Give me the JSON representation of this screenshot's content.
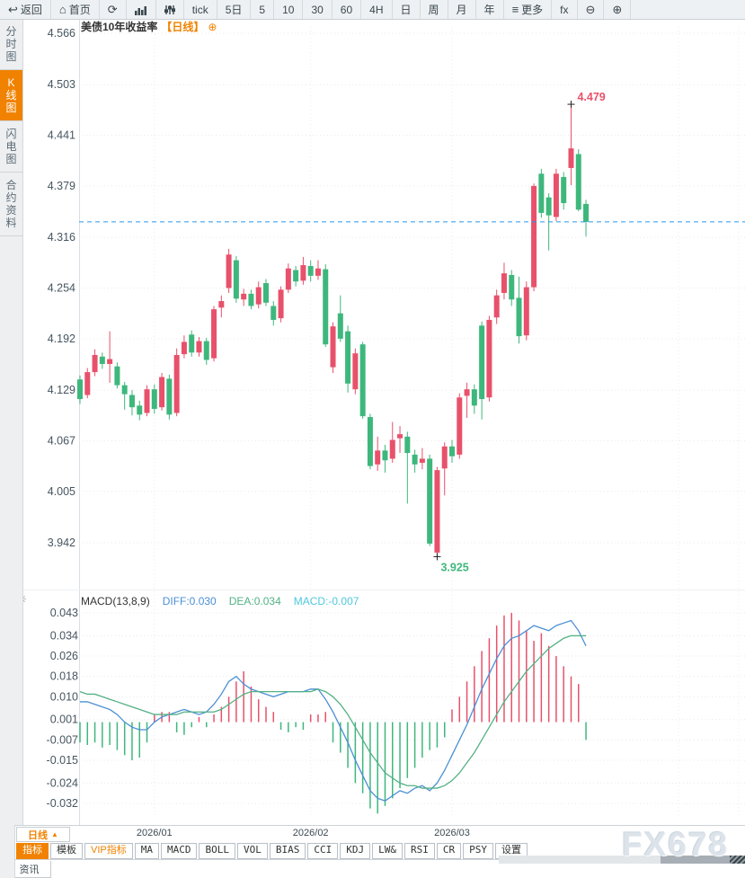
{
  "top_toolbar": {
    "buttons": [
      {
        "id": "back",
        "label": "返回",
        "icon": "back-arrow"
      },
      {
        "id": "home",
        "label": "首页",
        "icon": "home"
      },
      {
        "id": "refresh",
        "label": "",
        "icon": "refresh"
      },
      {
        "id": "chart-type",
        "label": "",
        "icon": "bar-chart"
      },
      {
        "id": "indicator-settings",
        "label": "",
        "icon": "sliders"
      },
      {
        "id": "tick",
        "label": "tick"
      },
      {
        "id": "five-day",
        "label": "5日"
      },
      {
        "id": "min5",
        "label": "5"
      },
      {
        "id": "min10",
        "label": "10"
      },
      {
        "id": "min30",
        "label": "30"
      },
      {
        "id": "min60",
        "label": "60"
      },
      {
        "id": "hour4",
        "label": "4H"
      },
      {
        "id": "daily",
        "label": "日"
      },
      {
        "id": "weekly",
        "label": "周"
      },
      {
        "id": "monthly",
        "label": "月"
      },
      {
        "id": "yearly",
        "label": "年"
      },
      {
        "id": "more",
        "label": "更多",
        "icon": "menu"
      },
      {
        "id": "formula",
        "label": "fx"
      },
      {
        "id": "zoom-out",
        "label": "",
        "icon": "zoom-out"
      },
      {
        "id": "zoom-in",
        "label": "",
        "icon": "zoom-in"
      }
    ]
  },
  "sidebar": {
    "items": [
      {
        "id": "time-chart",
        "label": "分时图",
        "active": false
      },
      {
        "id": "kline-chart",
        "label": "K线图",
        "active": true
      },
      {
        "id": "lightning-chart",
        "label": "闪电图",
        "active": false
      },
      {
        "id": "contract-info",
        "label": "合约资料",
        "active": false
      }
    ]
  },
  "chart_header": {
    "title": "美债10年收益率",
    "period_tag": "【日线】"
  },
  "chart_data": {
    "type": "candlestick",
    "title": "美债10年收益率",
    "period": "日线",
    "y_labels": [
      "4.566",
      "4.503",
      "4.441",
      "4.379",
      "4.316",
      "4.254",
      "4.192",
      "4.129",
      "4.067",
      "4.005",
      "3.942"
    ],
    "x_tick_labels": [
      "2026/01",
      "2026/02",
      "2026/03"
    ],
    "x_tick_indices": [
      10,
      31,
      50
    ],
    "last_close": 4.335,
    "annotations": {
      "high": {
        "index": 66,
        "label": "4.479",
        "value": 4.479
      },
      "low": {
        "index": 48,
        "label": "3.925",
        "value": 3.925
      }
    },
    "candles": [
      [
        4.142,
        4.147,
        4.112,
        4.118
      ],
      [
        4.123,
        4.156,
        4.119,
        4.151
      ],
      [
        4.151,
        4.179,
        4.146,
        4.172
      ],
      [
        4.17,
        4.175,
        4.155,
        4.161
      ],
      [
        4.161,
        4.201,
        4.138,
        4.167
      ],
      [
        4.158,
        4.163,
        4.131,
        4.135
      ],
      [
        4.135,
        4.139,
        4.105,
        4.124
      ],
      [
        4.123,
        4.129,
        4.098,
        4.108
      ],
      [
        4.11,
        4.116,
        4.092,
        4.099
      ],
      [
        4.101,
        4.135,
        4.097,
        4.13
      ],
      [
        4.13,
        4.136,
        4.1,
        4.106
      ],
      [
        4.108,
        4.15,
        4.104,
        4.145
      ],
      [
        4.143,
        4.148,
        4.093,
        4.099
      ],
      [
        4.101,
        4.18,
        4.097,
        4.172
      ],
      [
        4.173,
        4.196,
        4.168,
        4.188
      ],
      [
        4.197,
        4.202,
        4.17,
        4.175
      ],
      [
        4.175,
        4.194,
        4.17,
        4.189
      ],
      [
        4.189,
        4.193,
        4.16,
        4.166
      ],
      [
        4.168,
        4.232,
        4.164,
        4.228
      ],
      [
        4.23,
        4.245,
        4.218,
        4.238
      ],
      [
        4.254,
        4.302,
        4.248,
        4.295
      ],
      [
        4.288,
        4.293,
        4.236,
        4.241
      ],
      [
        4.24,
        4.253,
        4.232,
        4.247
      ],
      [
        4.247,
        4.252,
        4.228,
        4.232
      ],
      [
        4.234,
        4.262,
        4.229,
        4.255
      ],
      [
        4.26,
        4.265,
        4.232,
        4.236
      ],
      [
        4.232,
        4.238,
        4.208,
        4.215
      ],
      [
        4.217,
        4.256,
        4.212,
        4.252
      ],
      [
        4.252,
        4.284,
        4.248,
        4.278
      ],
      [
        4.276,
        4.281,
        4.256,
        4.262
      ],
      [
        4.263,
        4.292,
        4.258,
        4.282
      ],
      [
        4.281,
        4.288,
        4.262,
        4.269
      ],
      [
        4.269,
        4.288,
        4.264,
        4.278
      ],
      [
        4.277,
        4.283,
        4.182,
        4.185
      ],
      [
        4.157,
        4.212,
        4.15,
        4.207
      ],
      [
        4.223,
        4.245,
        4.188,
        4.192
      ],
      [
        4.201,
        4.208,
        4.126,
        4.137
      ],
      [
        4.13,
        4.18,
        4.124,
        4.174
      ],
      [
        4.185,
        4.188,
        4.094,
        4.097
      ],
      [
        4.096,
        4.1,
        4.032,
        4.036
      ],
      [
        4.038,
        4.072,
        4.03,
        4.055
      ],
      [
        4.055,
        4.062,
        4.028,
        4.043
      ],
      [
        4.045,
        4.09,
        4.04,
        4.068
      ],
      [
        4.07,
        4.085,
        4.052,
        4.075
      ],
      [
        4.072,
        4.078,
        3.99,
        4.052
      ],
      [
        4.05,
        4.056,
        4.028,
        4.038
      ],
      [
        4.04,
        4.058,
        4.032,
        4.045
      ],
      [
        4.045,
        4.05,
        3.938,
        3.941
      ],
      [
        3.93,
        4.035,
        3.925,
        4.031
      ],
      [
        4.033,
        4.065,
        4.0,
        4.06
      ],
      [
        4.06,
        4.068,
        4.04,
        4.048
      ],
      [
        4.05,
        4.125,
        4.045,
        4.12
      ],
      [
        4.122,
        4.138,
        4.095,
        4.13
      ],
      [
        4.13,
        4.136,
        4.1,
        4.11
      ],
      [
        4.208,
        4.213,
        4.093,
        4.118
      ],
      [
        4.12,
        4.22,
        4.115,
        4.215
      ],
      [
        4.218,
        4.252,
        4.21,
        4.245
      ],
      [
        4.248,
        4.285,
        4.24,
        4.272
      ],
      [
        4.27,
        4.276,
        4.232,
        4.24
      ],
      [
        4.242,
        4.268,
        4.186,
        4.195
      ],
      [
        4.196,
        4.262,
        4.19,
        4.255
      ],
      [
        4.255,
        4.382,
        4.25,
        4.379
      ],
      [
        4.394,
        4.4,
        4.34,
        4.346
      ],
      [
        4.365,
        4.37,
        4.3,
        4.343
      ],
      [
        4.341,
        4.4,
        4.336,
        4.394
      ],
      [
        4.39,
        4.396,
        4.35,
        4.358
      ],
      [
        4.401,
        4.479,
        4.38,
        4.425
      ],
      [
        4.418,
        4.424,
        4.348,
        4.35
      ],
      [
        4.357,
        4.362,
        4.317,
        4.335
      ]
    ]
  },
  "macd_panel": {
    "name_label": "MACD(13,8,9)",
    "diff_label": "DIFF:0.030",
    "dea_label": "DEA:0.034",
    "macd_label": "MACD:-0.007",
    "y_labels": [
      "0.043",
      "0.034",
      "0.026",
      "0.018",
      "0.010",
      "0.001",
      "-0.007",
      "-0.015",
      "-0.024",
      "-0.032"
    ],
    "diff": [
      0.008,
      0.008,
      0.007,
      0.006,
      0.005,
      0.003,
      0.0,
      -0.002,
      -0.003,
      -0.003,
      0.0,
      0.002,
      0.003,
      0.004,
      0.005,
      0.004,
      0.003,
      0.004,
      0.007,
      0.011,
      0.016,
      0.018,
      0.015,
      0.013,
      0.012,
      0.011,
      0.01,
      0.011,
      0.012,
      0.012,
      0.012,
      0.013,
      0.013,
      0.009,
      0.004,
      -0.002,
      -0.008,
      -0.015,
      -0.021,
      -0.027,
      -0.03,
      -0.031,
      -0.029,
      -0.027,
      -0.028,
      -0.026,
      -0.025,
      -0.027,
      -0.024,
      -0.019,
      -0.013,
      -0.007,
      -0.001,
      0.006,
      0.013,
      0.019,
      0.025,
      0.03,
      0.033,
      0.034,
      0.036,
      0.038,
      0.037,
      0.036,
      0.038,
      0.039,
      0.04,
      0.036,
      0.03
    ],
    "dea": [
      0.012,
      0.011,
      0.011,
      0.01,
      0.009,
      0.008,
      0.007,
      0.006,
      0.005,
      0.004,
      0.003,
      0.003,
      0.003,
      0.003,
      0.004,
      0.004,
      0.004,
      0.004,
      0.004,
      0.005,
      0.007,
      0.009,
      0.011,
      0.012,
      0.012,
      0.012,
      0.012,
      0.012,
      0.012,
      0.012,
      0.012,
      0.012,
      0.013,
      0.012,
      0.01,
      0.007,
      0.003,
      -0.002,
      -0.007,
      -0.012,
      -0.016,
      -0.02,
      -0.022,
      -0.024,
      -0.025,
      -0.025,
      -0.026,
      -0.026,
      -0.026,
      -0.025,
      -0.023,
      -0.02,
      -0.016,
      -0.012,
      -0.007,
      -0.002,
      0.003,
      0.008,
      0.012,
      0.016,
      0.02,
      0.023,
      0.026,
      0.029,
      0.031,
      0.033,
      0.034,
      0.034,
      0.034
    ],
    "hist": [
      -0.008,
      -0.009,
      -0.008,
      -0.01,
      -0.009,
      -0.011,
      -0.013,
      -0.015,
      -0.014,
      -0.008,
      0.003,
      0.004,
      0.004,
      -0.004,
      -0.005,
      -0.002,
      0.002,
      -0.002,
      0.003,
      0.006,
      0.01,
      0.016,
      0.02,
      0.014,
      0.009,
      0.006,
      0.004,
      -0.003,
      -0.004,
      -0.002,
      -0.003,
      0.003,
      0.003,
      0.004,
      -0.008,
      -0.012,
      -0.018,
      -0.024,
      -0.028,
      -0.034,
      -0.036,
      -0.033,
      -0.03,
      -0.026,
      -0.022,
      -0.018,
      -0.014,
      -0.011,
      -0.01,
      -0.006,
      0.005,
      0.01,
      0.016,
      0.022,
      0.028,
      0.033,
      0.038,
      0.042,
      0.043,
      0.04,
      0.036,
      0.032,
      0.035,
      0.03,
      0.026,
      0.022,
      0.018,
      0.015,
      -0.007
    ]
  },
  "bottom_axis": {
    "period_label": "日线"
  },
  "bottom_toolbar": {
    "tabs": [
      {
        "label": "指标",
        "active": true
      },
      {
        "label": "模板",
        "active": false
      },
      {
        "label": "VIP指标",
        "vip": true
      }
    ],
    "indicators": [
      "MA",
      "MACD",
      "BOLL",
      "VOL",
      "BIAS",
      "CCI",
      "KDJ",
      "LW&",
      "RSI",
      "CR",
      "PSY",
      "设置"
    ]
  },
  "footer": {
    "news_label": "资讯"
  },
  "watermark": "FX678",
  "colors": {
    "up": "#e8516b",
    "down": "#3eb77c",
    "accent": "#f08200",
    "diff_line": "#4b8fd5",
    "dea_line": "#53b184",
    "macd_text": "#4fc8dc",
    "last_close_line": "#2196f3",
    "high_label": "#e8516b",
    "low_label": "#3eb77c",
    "grid": "#e9e9e9",
    "axis_text": "#46555f"
  }
}
